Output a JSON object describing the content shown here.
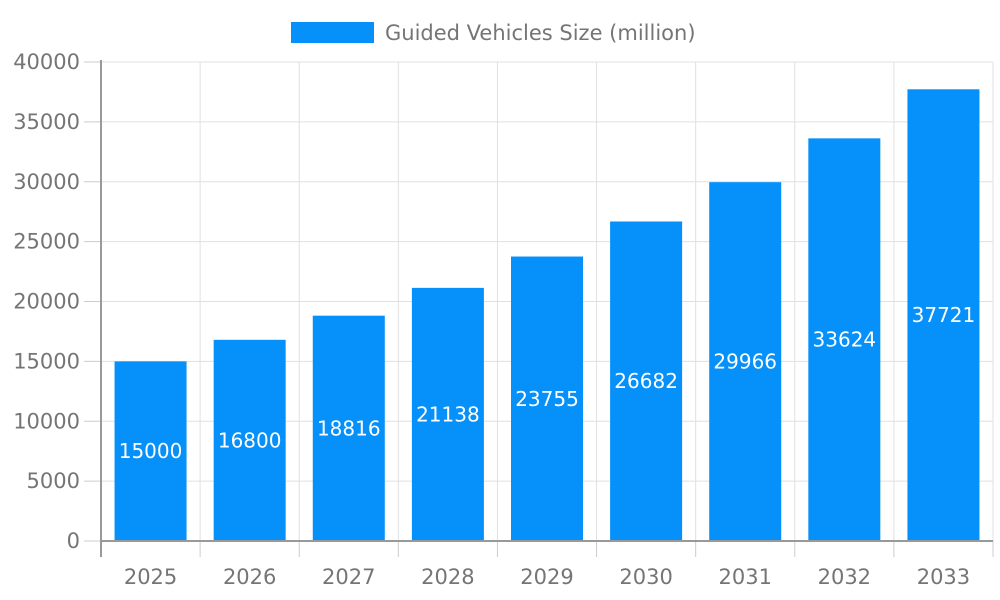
{
  "legend": {
    "label": "Guided Vehicles Size (million)",
    "swatch_color": "#0590FA"
  },
  "chart_data": {
    "type": "bar",
    "title": "Guided Vehicles Size (million)",
    "categories": [
      "2025",
      "2026",
      "2027",
      "2028",
      "2029",
      "2030",
      "2031",
      "2032",
      "2033"
    ],
    "values": [
      15000,
      16800,
      18816,
      21138,
      23755,
      26682,
      29966,
      33624,
      37721
    ],
    "series_name": "Guided Vehicles Size (million)",
    "xlabel": "",
    "ylabel": "",
    "ylim": [
      0,
      40000
    ],
    "ytick_step": 5000,
    "ytick_labels": [
      "0",
      "5000",
      "10000",
      "15000",
      "20000",
      "25000",
      "30000",
      "35000",
      "40000"
    ],
    "grid": true,
    "legend_position": "top",
    "value_labels": "inside-center",
    "colors": {
      "bar": "#0590FA",
      "value_label": "#FFFFFF",
      "axis_text": "#757575",
      "grid_line": "#E0E0E0",
      "axis_line": "#999999",
      "tick_line": "#CCCCCC",
      "background": "#FFFFFF"
    }
  }
}
